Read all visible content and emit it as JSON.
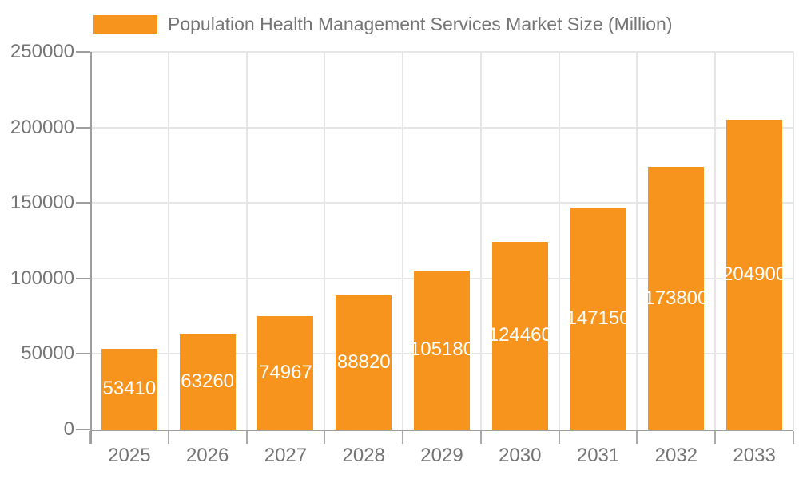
{
  "legend": {
    "label": "Population Health Management Services Market Size (Million)"
  },
  "chart_data": {
    "type": "bar",
    "title": "Population Health Management Services Market Size (Million)",
    "categories": [
      "2025",
      "2026",
      "2027",
      "2028",
      "2029",
      "2030",
      "2031",
      "2032",
      "2033"
    ],
    "values": [
      53410,
      63260,
      74967,
      88820,
      105180,
      124460,
      147150,
      173800,
      204900
    ],
    "xlabel": "",
    "ylabel": "",
    "ylim": [
      0,
      250000
    ],
    "yticks": [
      0,
      50000,
      100000,
      150000,
      200000,
      250000
    ],
    "grid": true,
    "legend_position": "top",
    "value_labels": "inside-center-white"
  },
  "colors": {
    "bar": "#F7941E",
    "axis_label": "#757575",
    "gridline": "#E6E6E6",
    "axis_line": "#9E9E9E",
    "tick": "#ABABAB",
    "value_label": "#FFFFFF",
    "background": "#FFFFFF"
  }
}
